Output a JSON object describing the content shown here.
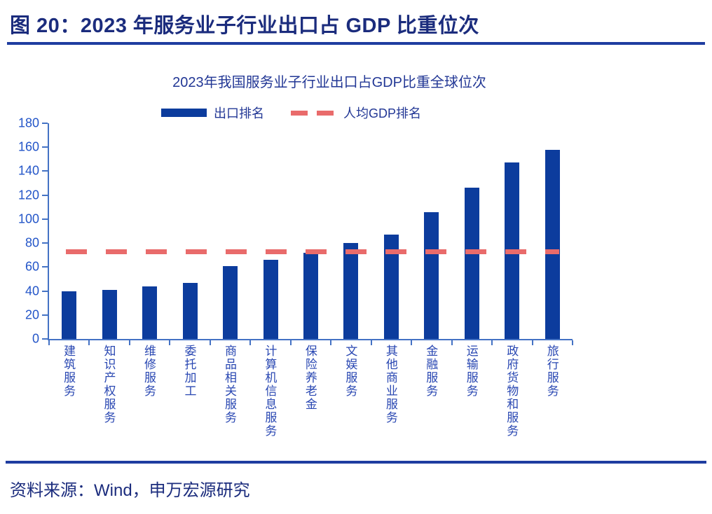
{
  "header": {
    "title": "图 20：2023 年服务业子行业出口占 GDP 比重位次"
  },
  "chart_data": {
    "type": "bar",
    "title": "2023年我国服务业子行业出口占GDP比重全球位次",
    "categories": [
      "建筑服务",
      "知识产权服务",
      "维修服务",
      "委托加工",
      "商品相关服务",
      "计算机信息服务",
      "保险养老金",
      "文娱服务",
      "其他商业服务",
      "金融服务",
      "运输服务",
      "政府货物和服务",
      "旅行服务"
    ],
    "series": [
      {
        "name": "出口排名",
        "type": "bar",
        "values": [
          40,
          41,
          44,
          47,
          61,
          66,
          72,
          80,
          87,
          106,
          126,
          147,
          158
        ]
      },
      {
        "name": "人均GDP排名",
        "type": "dashed-reference-line",
        "value": 73
      }
    ],
    "legend": [
      "出口排名",
      "人均GDP排名"
    ],
    "legend_position": "top",
    "xlabel": "",
    "ylabel": "",
    "ylim": [
      0,
      180
    ],
    "ytick_step": 20,
    "grid": false
  },
  "source": {
    "text": "资料来源：Wind，申万宏源研究"
  },
  "colors": {
    "header_text": "#1B2C7D",
    "rule": "#1F3DA0",
    "chart_text": "#223795",
    "axis_line": "#4472C4",
    "ytick_text": "#2355C8",
    "xlabel_text": "#2947B2",
    "bar": "#0C3C9D",
    "ref_line": "#E96B6B"
  }
}
